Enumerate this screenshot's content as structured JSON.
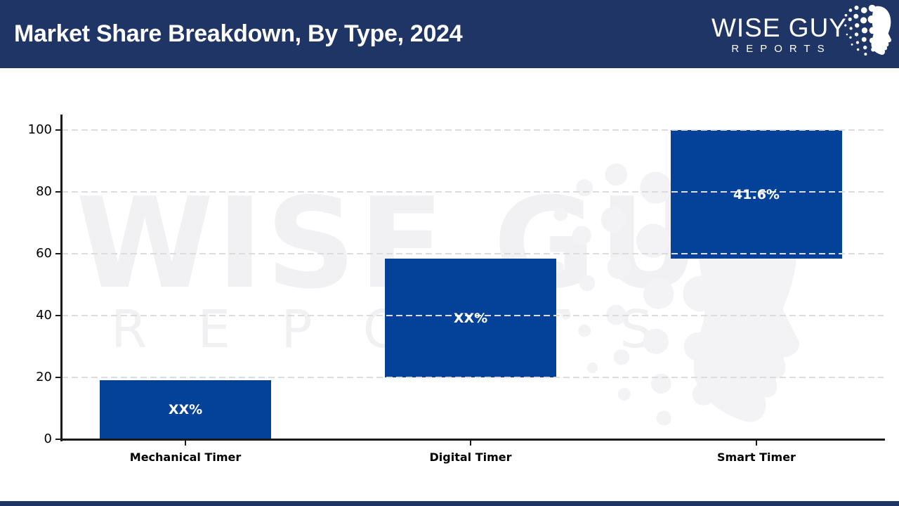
{
  "header": {
    "title": "Market Share Breakdown, By Type, 2024",
    "logo": {
      "line1": "WISE GUY",
      "line2": "REPORTS"
    }
  },
  "watermark": {
    "line1": "WISE GUY",
    "line2": "REPORTS"
  },
  "colors": {
    "header_bg": "#1f3565",
    "bar": "#04429a",
    "bar_label": "#ffffff",
    "gridline": "#dcdcdc",
    "axis": "#1a1a1a",
    "watermark": "#f1f1f3"
  },
  "chart_data": {
    "type": "bar",
    "subtype": "floating-waterfall",
    "title": "Market Share Breakdown, By Type, 2024",
    "xlabel": "",
    "ylabel": "",
    "categories": [
      "Mechanical Timer",
      "Digital Timer",
      "Smart Timer"
    ],
    "segments": [
      {
        "category": "Mechanical Timer",
        "start": 0,
        "end": 19.2,
        "label": "XX%"
      },
      {
        "category": "Digital Timer",
        "start": 20,
        "end": 58.4,
        "label": "XX%"
      },
      {
        "category": "Smart Timer",
        "start": 58.4,
        "end": 100,
        "label": "41.6%"
      }
    ],
    "yticks": [
      0,
      20,
      40,
      60,
      80,
      100
    ],
    "ylim": [
      0,
      105
    ],
    "grid": "horizontal-dashed",
    "legend": "none"
  }
}
